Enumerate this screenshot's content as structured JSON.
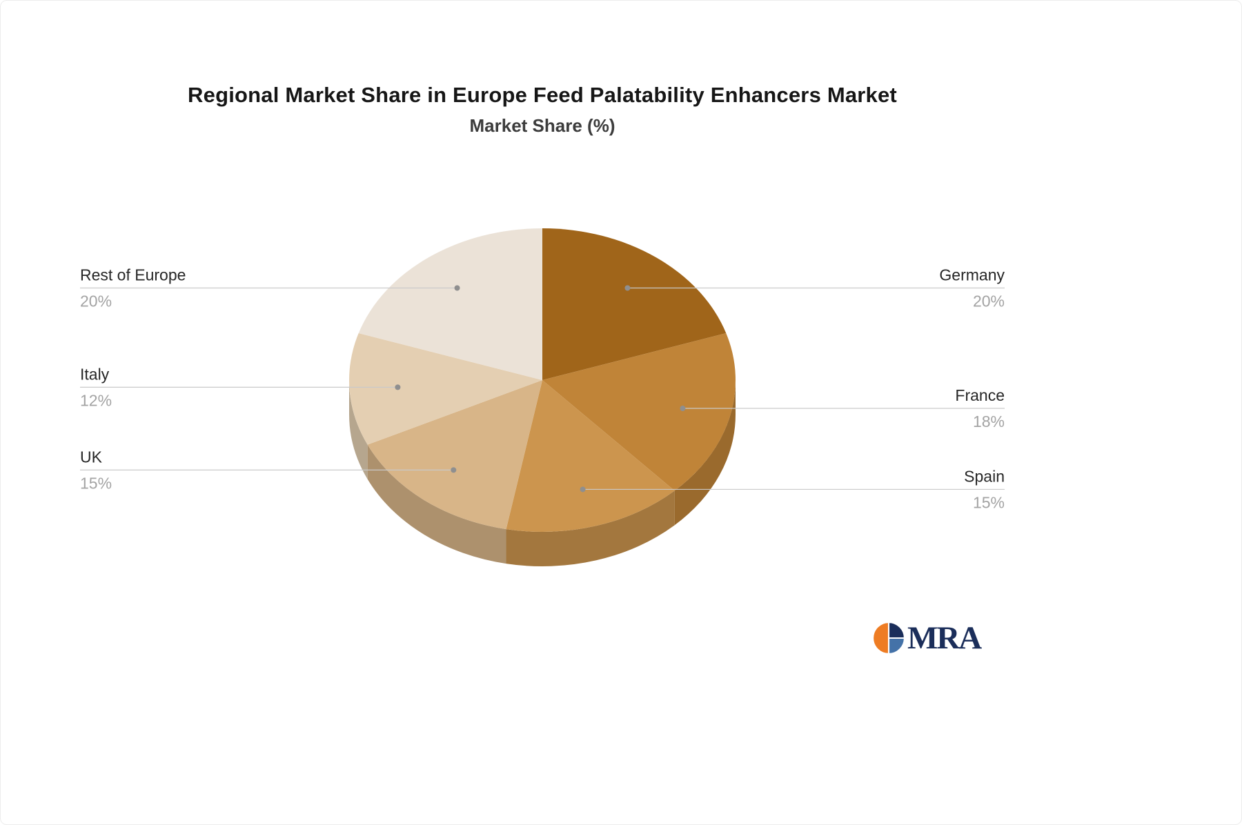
{
  "chart_data": {
    "type": "pie",
    "style": "3d-pie",
    "title": "Regional Market Share in Europe Feed Palatability Enhancers Market",
    "subtitle": "Market Share (%)",
    "unit": "%",
    "start_angle_deg": -90,
    "direction": "clockwise",
    "legend_position": "none",
    "label_style": "leader-lines with name above and percent below",
    "slices": [
      {
        "label": "Germany",
        "value": 20,
        "percent_label": "20%",
        "color": "#a0651a"
      },
      {
        "label": "France",
        "value": 18,
        "percent_label": "18%",
        "color": "#c08438"
      },
      {
        "label": "Spain",
        "value": 15,
        "percent_label": "15%",
        "color": "#cc954e"
      },
      {
        "label": "UK",
        "value": 15,
        "percent_label": "15%",
        "color": "#d8b588"
      },
      {
        "label": "Italy",
        "value": 12,
        "percent_label": "12%",
        "color": "#e4cfb2"
      },
      {
        "label": "Rest of Europe",
        "value": 20,
        "percent_label": "20%",
        "color": "#ebe2d7"
      }
    ]
  },
  "logo": {
    "text": "MRA",
    "colors": {
      "orange": "#ee7c23",
      "navy": "#1b2e5a",
      "blue": "#4472a8"
    }
  }
}
